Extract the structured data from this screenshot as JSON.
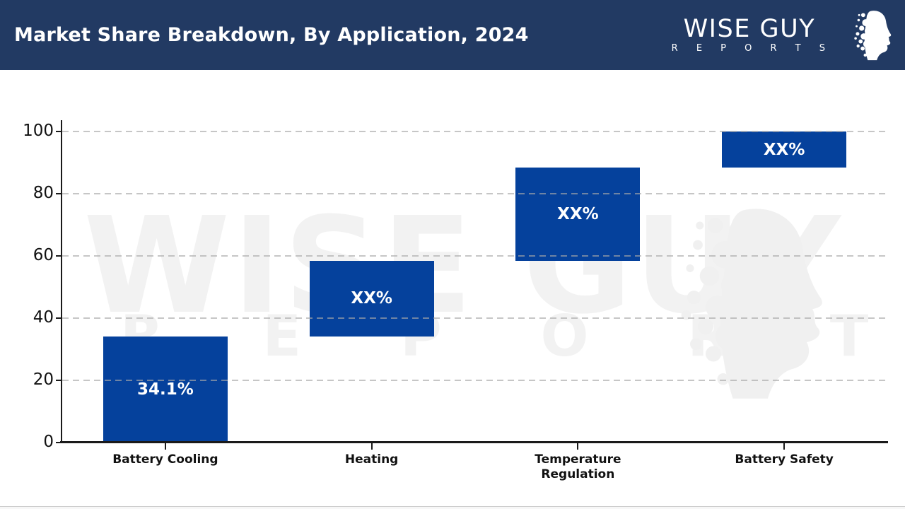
{
  "header": {
    "title": "Market Share Breakdown, By Application, 2024",
    "bg_color": "#223a63",
    "logo": {
      "line1": "WISE GUY",
      "line2": "R E P O R T S"
    }
  },
  "watermark": {
    "line1": "WISE GUY",
    "line2": "R E P O R T S"
  },
  "chart_data": {
    "type": "bar",
    "subtype": "floating-waterfall",
    "title": "Market Share Breakdown, By Application, 2024",
    "categories": [
      "Battery Cooling",
      "Heating",
      "Temperature Regulation",
      "Battery Safety"
    ],
    "segments": [
      {
        "category": "Battery Cooling",
        "start": 0,
        "end": 34.1,
        "label": "34.1%"
      },
      {
        "category": "Heating",
        "start": 34.1,
        "end": 58.5,
        "label": "XX%"
      },
      {
        "category": "Temperature Regulation",
        "start": 58.5,
        "end": 88.3,
        "label": "XX%"
      },
      {
        "category": "Battery Safety",
        "start": 88.3,
        "end": 100,
        "label": "XX%"
      }
    ],
    "xlabel": "",
    "ylabel": "",
    "ylim": [
      0,
      103.6
    ],
    "yticks": [
      0,
      20,
      40,
      60,
      80,
      100
    ],
    "grid": true,
    "grid_style": "dashed",
    "legend": "none",
    "bar_color": "#05419c",
    "bar_label_color": "#ffffff",
    "axis_color": "#1a1a1a"
  }
}
